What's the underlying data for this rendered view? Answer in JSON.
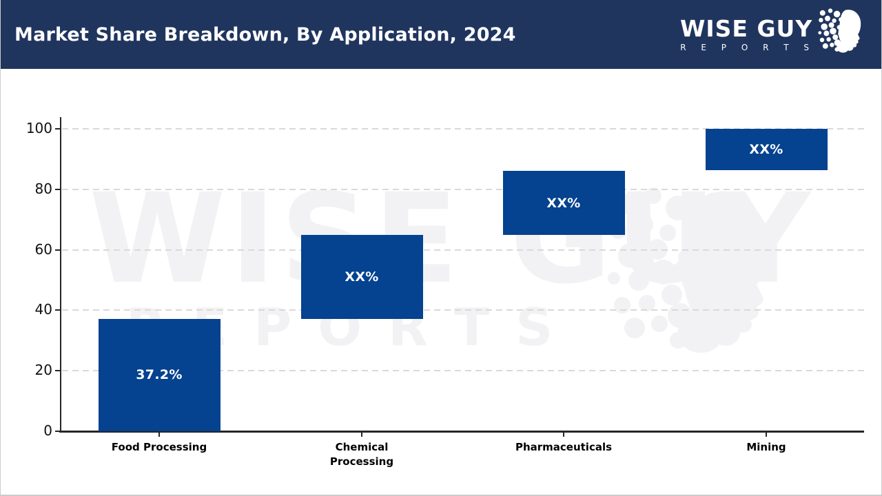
{
  "header": {
    "title": "Market Share Breakdown, By Application, 2024",
    "logo": {
      "primary": "WISE GUY",
      "secondary": "R E P O R T S"
    }
  },
  "watermark": {
    "primary": "WISE GUY",
    "secondary": "R E P O R T S"
  },
  "colors": {
    "header_bg": "#20355e",
    "bar": "#05428f",
    "bar_label": "#ffffff",
    "axis": "#262626",
    "grid": "#d9d9d9",
    "watermark": "#f2f2f4"
  },
  "chart_data": {
    "type": "bar",
    "variant": "waterfall",
    "title": "Market Share Breakdown, By Application, 2024",
    "categories": [
      "Food Processing",
      "Chemical Processing",
      "Pharmaceuticals",
      "Mining"
    ],
    "bars": [
      {
        "category": "Food Processing",
        "start": 0,
        "end": 37.2,
        "label": "37.2%"
      },
      {
        "category": "Chemical Processing",
        "start": 37.2,
        "end": 65,
        "label": "XX%"
      },
      {
        "category": "Pharmaceuticals",
        "start": 65,
        "end": 86,
        "label": "XX%"
      },
      {
        "category": "Mining",
        "start": 86.4,
        "end": 100,
        "label": "XX%"
      }
    ],
    "xlabel": "",
    "ylabel": "",
    "ylim": [
      0,
      100
    ],
    "yticks": [
      0,
      20,
      40,
      60,
      80,
      100
    ],
    "grid": "dashed-horizontal",
    "legend": "none",
    "bar_color": "#05428f",
    "bar_label_color": "#ffffff"
  }
}
